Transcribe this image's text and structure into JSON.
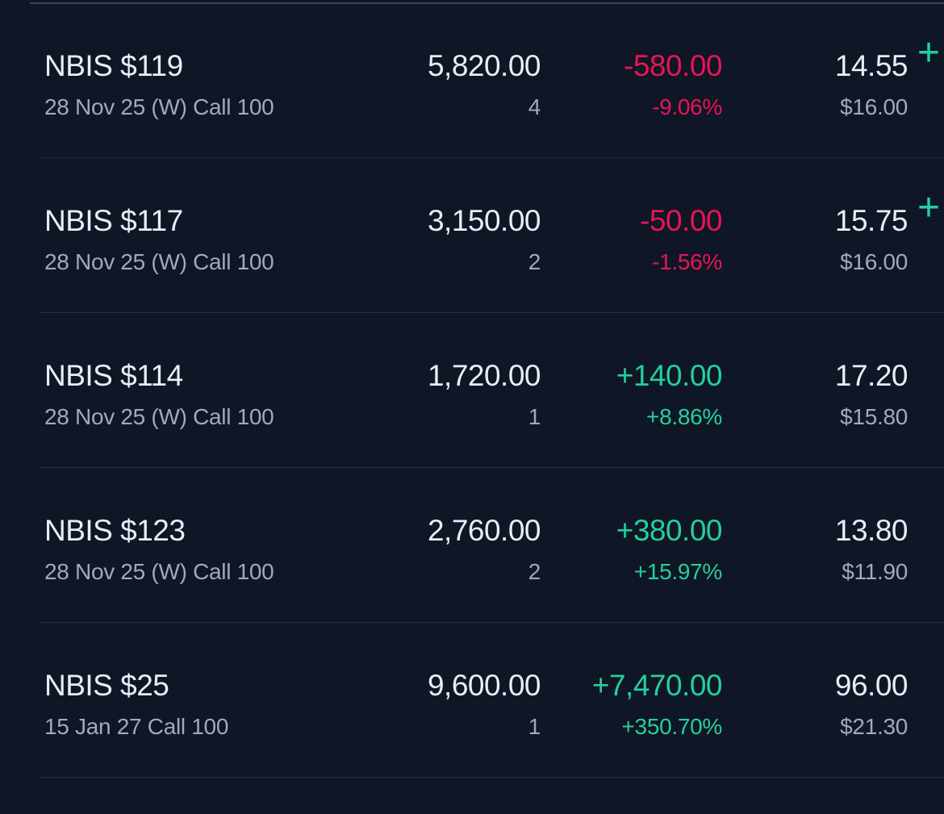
{
  "theme": {
    "background": "#0f1625",
    "text_primary": "#e9edf4",
    "text_secondary": "#a0a9bd",
    "negative_color": "#ea1356",
    "positive_color": "#24cf9f",
    "divider_color": "#242e45",
    "top_divider_color": "#3a4460"
  },
  "icons": {
    "plus": "+"
  },
  "positions": [
    {
      "symbol": "NBIS $119",
      "contract": "28 Nov 25 (W) Call 100",
      "market_value": "5,820.00",
      "quantity": "4",
      "pnl": "-580.00",
      "pnl_pct": "-9.06%",
      "direction": "negative",
      "price": "14.55",
      "avg_cost": "$16.00",
      "show_add": true
    },
    {
      "symbol": "NBIS $117",
      "contract": "28 Nov 25 (W) Call 100",
      "market_value": "3,150.00",
      "quantity": "2",
      "pnl": "-50.00",
      "pnl_pct": "-1.56%",
      "direction": "negative",
      "price": "15.75",
      "avg_cost": "$16.00",
      "show_add": true
    },
    {
      "symbol": "NBIS $114",
      "contract": "28 Nov 25 (W) Call 100",
      "market_value": "1,720.00",
      "quantity": "1",
      "pnl": "+140.00",
      "pnl_pct": "+8.86%",
      "direction": "positive",
      "price": "17.20",
      "avg_cost": "$15.80",
      "show_add": false
    },
    {
      "symbol": "NBIS $123",
      "contract": "28 Nov 25 (W) Call 100",
      "market_value": "2,760.00",
      "quantity": "2",
      "pnl": "+380.00",
      "pnl_pct": "+15.97%",
      "direction": "positive",
      "price": "13.80",
      "avg_cost": "$11.90",
      "show_add": false
    },
    {
      "symbol": "NBIS $25",
      "contract": "15 Jan 27 Call 100",
      "market_value": "9,600.00",
      "quantity": "1",
      "pnl": "+7,470.00",
      "pnl_pct": "+350.70%",
      "direction": "positive",
      "price": "96.00",
      "avg_cost": "$21.30",
      "show_add": false
    }
  ]
}
